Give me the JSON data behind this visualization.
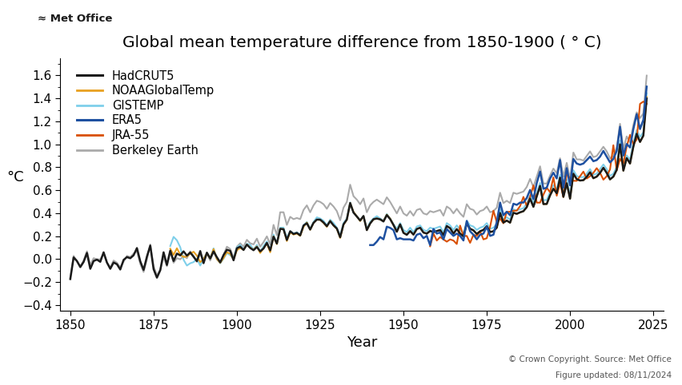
{
  "title": "Global mean temperature difference from 1850-1900 ( ° C)",
  "xlabel": "Year",
  "ylabel": "°C",
  "xlim": [
    1847,
    2028
  ],
  "ylim": [
    -0.45,
    1.75
  ],
  "yticks": [
    -0.4,
    -0.2,
    0.0,
    0.2,
    0.4,
    0.6,
    0.8,
    1.0,
    1.2,
    1.4,
    1.6
  ],
  "xticks": [
    1850,
    1875,
    1900,
    1925,
    1950,
    1975,
    2000,
    2025
  ],
  "background_color": "#ffffff",
  "series": [
    {
      "name": "HadCRUT5",
      "color": "#1a1a1a",
      "lw": 1.8,
      "zorder": 5
    },
    {
      "name": "NOAAGlobalTemp",
      "color": "#e8a020",
      "lw": 1.5,
      "zorder": 4
    },
    {
      "name": "GISTEMP",
      "color": "#7ecfea",
      "lw": 1.5,
      "zorder": 3
    },
    {
      "name": "ERA5",
      "color": "#1e50a0",
      "lw": 1.8,
      "zorder": 6
    },
    {
      "name": "JRA-55",
      "color": "#d94f00",
      "lw": 1.5,
      "zorder": 4
    },
    {
      "name": "Berkeley Earth",
      "color": "#aaaaaa",
      "lw": 1.5,
      "zorder": 2
    }
  ],
  "copyright_text": "© Crown Copyright. Source: Met Office",
  "figure_updated_text": "Figure updated: 08/11/2024"
}
